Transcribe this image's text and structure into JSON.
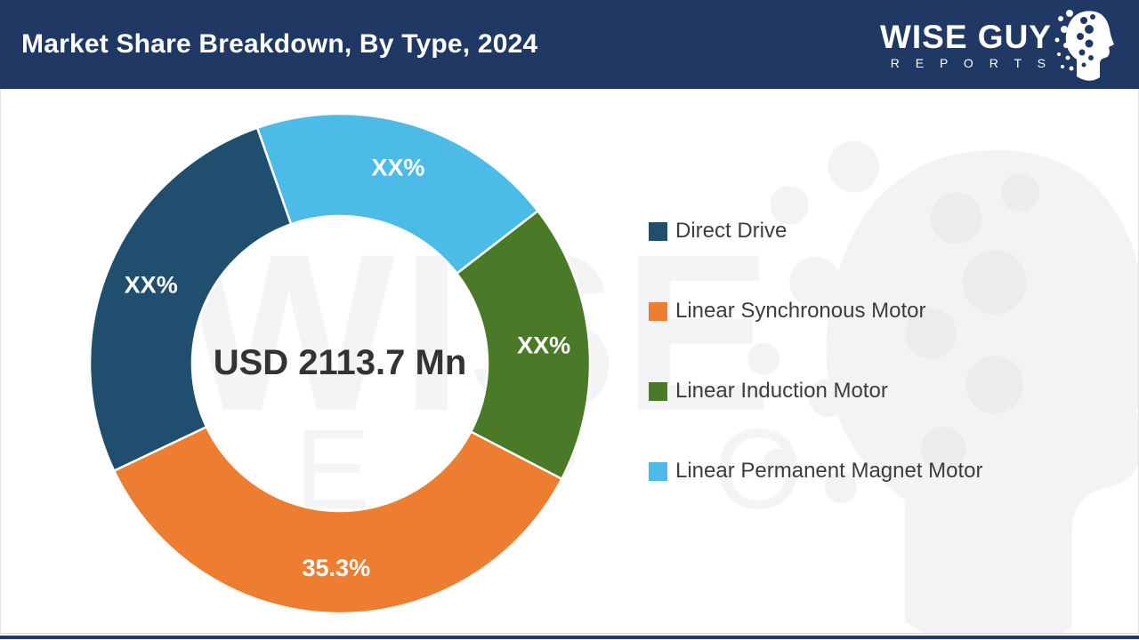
{
  "header": {
    "title": "Market Share Breakdown, By Type, 2024",
    "logo": {
      "line1": "WISE GUY",
      "line2": "R E P O R T S"
    }
  },
  "watermark": {
    "line1": "WISE GUY",
    "line2": "E P O"
  },
  "chart_data": {
    "type": "pie",
    "subtype": "donut",
    "title": "Market Share Breakdown, By Type, 2024",
    "center_label": "USD 2113.7 Mn",
    "start_angle_deg": -19.3,
    "draw_order": [
      3,
      2,
      1,
      0
    ],
    "slices": [
      {
        "name": "Direct Drive",
        "value_pct": 26.7,
        "label": "XX%",
        "color": "#1F4E6E"
      },
      {
        "name": "Linear Synchronous Motor",
        "value_pct": 35.3,
        "label": "35.3%",
        "color": "#ED7D31"
      },
      {
        "name": "Linear Induction Motor",
        "value_pct": 18.1,
        "label": "XX%",
        "color": "#4A7A28"
      },
      {
        "name": "Linear Permanent Magnet Motor",
        "value_pct": 19.9,
        "label": "XX%",
        "color": "#4DBBE7"
      }
    ],
    "geometry": {
      "outer_radius": 281,
      "inner_radius": 166,
      "label_radius": 230
    },
    "legend_position": "right",
    "colors": {
      "header_navy": "#1F3864",
      "text_dark": "#333333"
    }
  }
}
